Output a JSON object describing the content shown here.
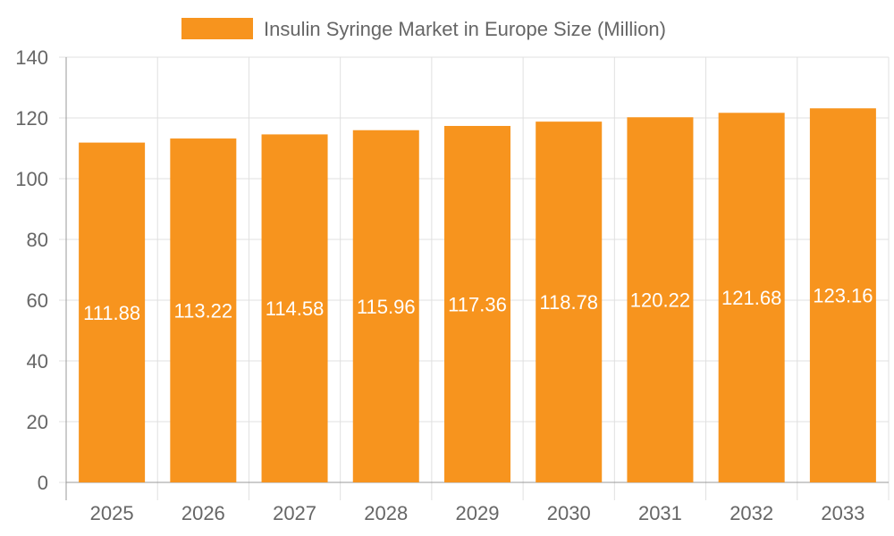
{
  "chart_data": {
    "type": "bar",
    "title": "",
    "categories": [
      "2025",
      "2026",
      "2027",
      "2028",
      "2029",
      "2030",
      "2031",
      "2032",
      "2033"
    ],
    "series": [
      {
        "name": "Insulin Syringe Market in Europe Size (Million)",
        "values": [
          111.88,
          113.22,
          114.58,
          115.96,
          117.36,
          118.78,
          120.22,
          121.68,
          123.16
        ],
        "color": "#F7941E"
      }
    ],
    "ylim": [
      0,
      140
    ],
    "yticks": [
      0,
      20,
      40,
      60,
      80,
      100,
      120,
      140
    ],
    "grid": true,
    "legend": "top",
    "data_labels": true
  }
}
